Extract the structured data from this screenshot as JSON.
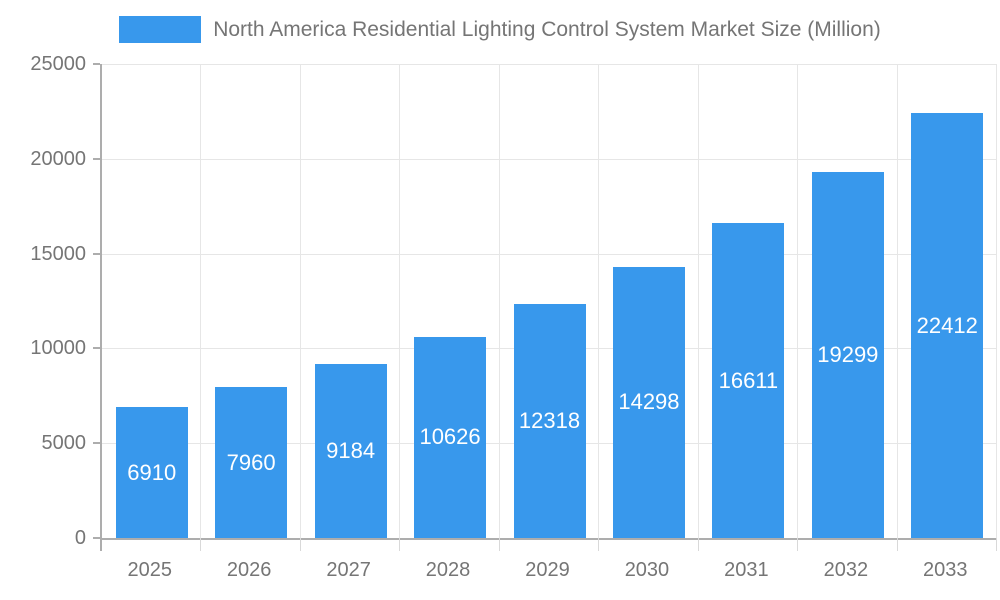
{
  "chart_data": {
    "type": "bar",
    "title": "North America Residential Lighting Control System Market Size (Million)",
    "categories": [
      "2025",
      "2026",
      "2027",
      "2028",
      "2029",
      "2030",
      "2031",
      "2032",
      "2033"
    ],
    "values": [
      6910,
      7960,
      9184,
      10626,
      12318,
      14298,
      16611,
      19299,
      22412
    ],
    "xlabel": "",
    "ylabel": "",
    "ylim": [
      0,
      25000
    ],
    "y_ticks": [
      0,
      5000,
      10000,
      15000,
      20000,
      25000
    ],
    "grid": "on",
    "legend_position": "top",
    "bar_color": "#3898ec",
    "bar_label_color": "#ffffff",
    "axis_text_color": "#757575",
    "grid_color": "#e6e6e6",
    "axis_line_color": "#adadad"
  }
}
